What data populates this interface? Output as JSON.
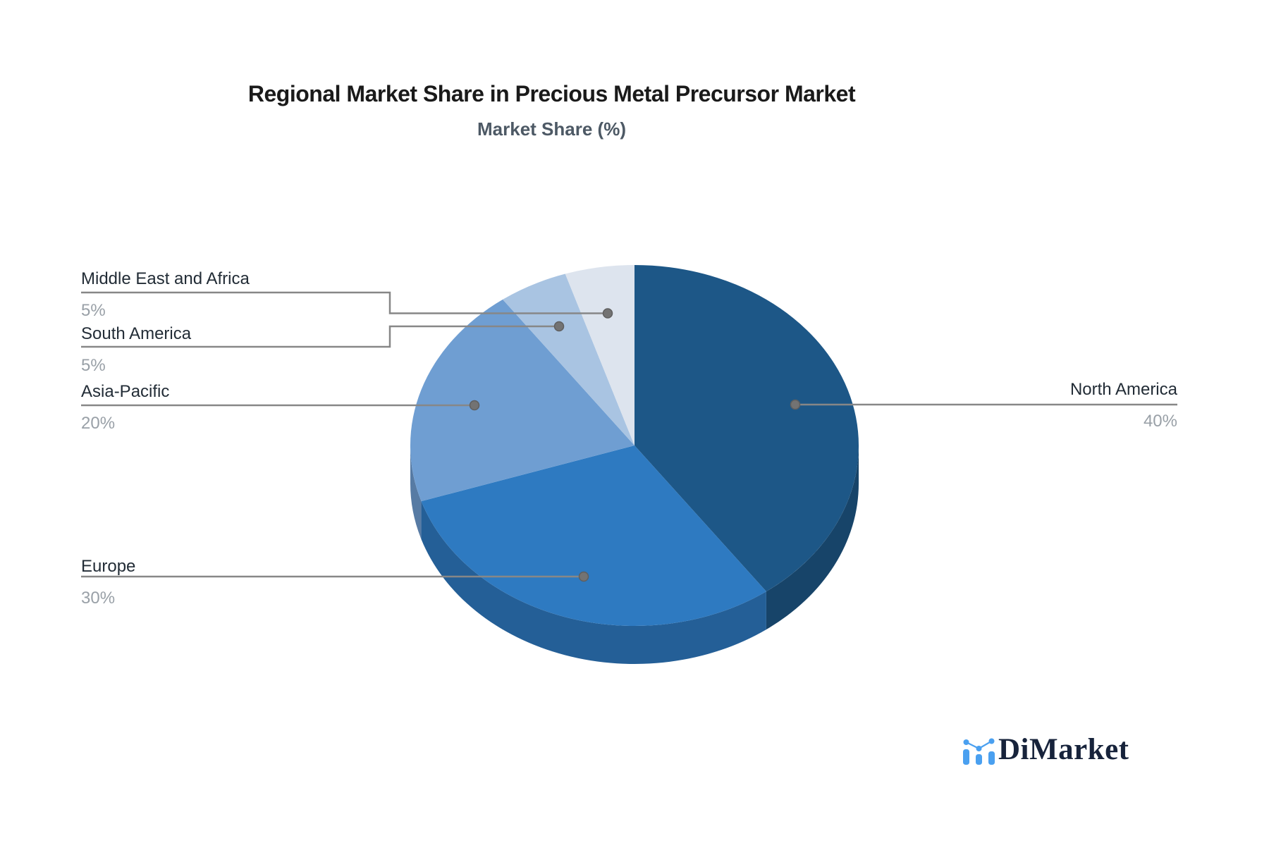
{
  "header": {
    "title": "Regional Market Share in Precious Metal Precursor Market",
    "subtitle": "Market Share (%)"
  },
  "chart_data": {
    "type": "pie",
    "title": "Regional Market Share in Precious Metal Precursor Market",
    "subtitle": "Market Share (%)",
    "unit": "%",
    "direction": "clockwise",
    "start_angle_deg": 0,
    "effect_3d": true,
    "legend_position": "none",
    "series": [
      {
        "name": "North America",
        "value": 40,
        "value_label": "40%",
        "color": "#1d5787",
        "label_side": "right"
      },
      {
        "name": "Europe",
        "value": 30,
        "value_label": "30%",
        "color": "#2e7ac1",
        "label_side": "left"
      },
      {
        "name": "Asia-Pacific",
        "value": 20,
        "value_label": "20%",
        "color": "#6f9ed2",
        "label_side": "left"
      },
      {
        "name": "South America",
        "value": 5,
        "value_label": "5%",
        "color": "#a9c4e2",
        "label_side": "left"
      },
      {
        "name": "Middle East and Africa",
        "value": 5,
        "value_label": "5%",
        "color": "#dde4ee",
        "label_side": "left"
      }
    ]
  },
  "logo": {
    "text": "DiMarket"
  },
  "colors": {
    "leader_line": "#878787",
    "dot_fill": "#737373",
    "dot_stroke": "#5f5f5f",
    "label_name": "#222c36",
    "label_value": "#99a0a7",
    "title": "#1a1a1a",
    "subtitle": "#4d5965",
    "logo_text": "#17233b",
    "logo_icon": "#4aa0f0"
  }
}
